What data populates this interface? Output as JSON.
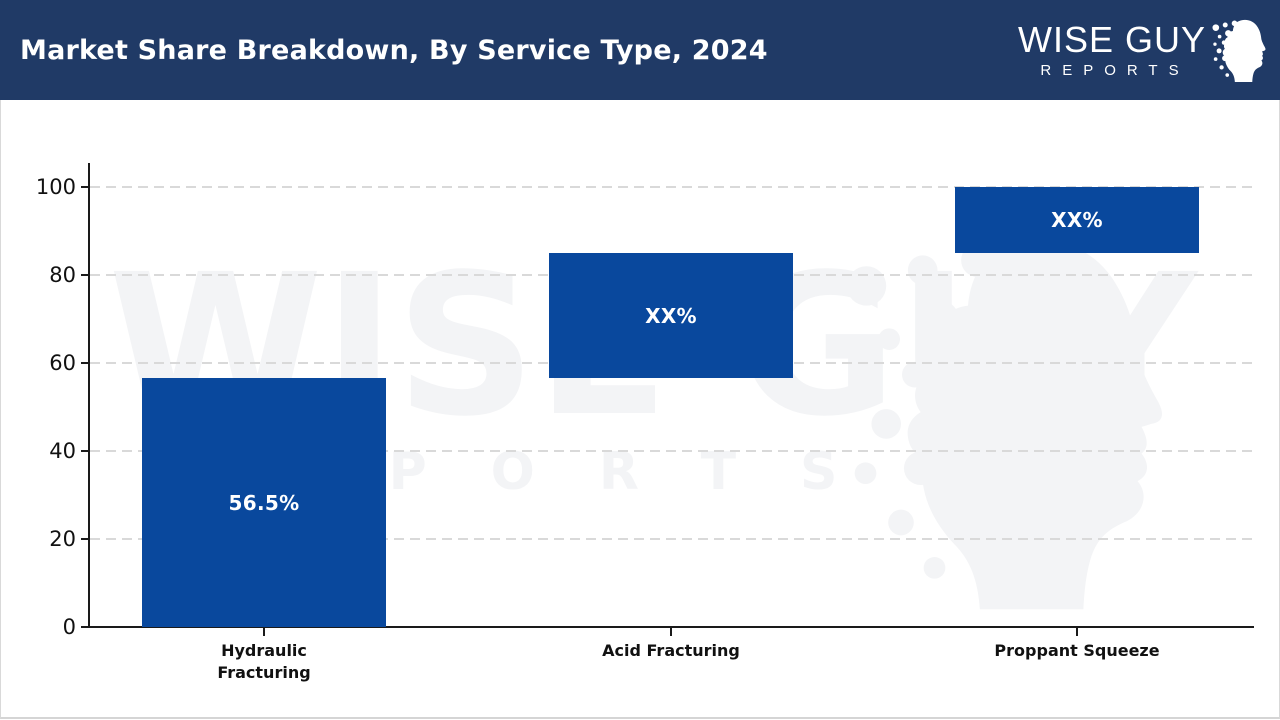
{
  "header": {
    "title": "Market Share Breakdown, By Service Type, 2024",
    "logo": {
      "line1": "WISE GUY",
      "line2": "REPORTS"
    }
  },
  "watermark": {
    "line1": "WISE GUY",
    "line2": "REPORTS"
  },
  "colors": {
    "header_bg": "#203a66",
    "bar": "#09489d",
    "grid": "#d9d9d9",
    "axis": "#1a1a1a",
    "watermark": "#f3f4f6",
    "value_label": "#ffffff"
  },
  "chart_data": {
    "type": "bar",
    "variant": "waterfall",
    "title": "Market Share Breakdown, By Service Type, 2024",
    "categories": [
      "Hydraulic\nFracturing",
      "Acid Fracturing",
      "Proppant Squeeze"
    ],
    "bars": [
      {
        "category": "Hydraulic Fracturing",
        "start": 0,
        "end": 56.5,
        "label": "56.5%"
      },
      {
        "category": "Acid Fracturing",
        "start": 56.5,
        "end": 85,
        "label": "XX%"
      },
      {
        "category": "Proppant Squeeze",
        "start": 85,
        "end": 100,
        "label": "XX%"
      }
    ],
    "yticks": [
      0,
      20,
      40,
      60,
      80,
      100
    ],
    "ylim": [
      0,
      105
    ],
    "xlabel": "",
    "ylabel": "",
    "grid": "horizontal-dashed",
    "legend": "none",
    "bar_color": "#09489d",
    "value_label_color": "#ffffff"
  }
}
